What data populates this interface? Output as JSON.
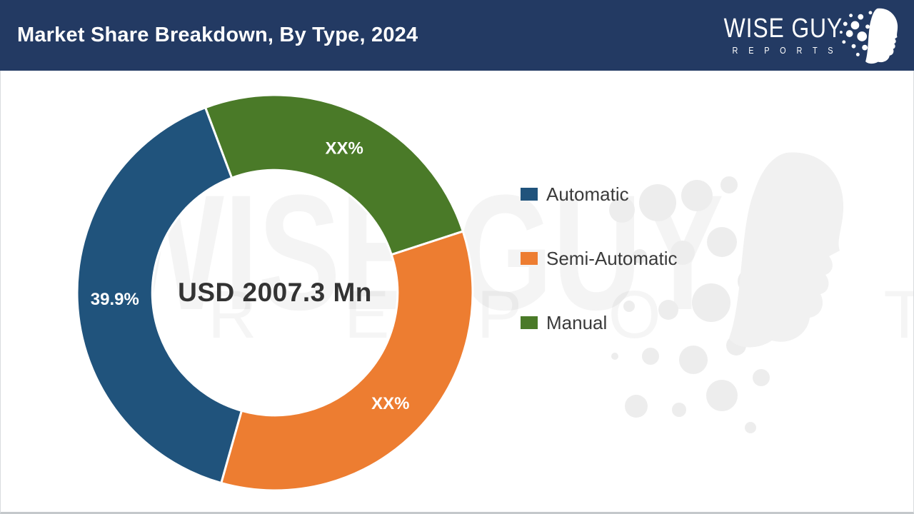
{
  "header": {
    "title": "Market Share Breakdown, By Type, 2024",
    "bg_color": "#233a63",
    "logo": {
      "line1": "WISE GUY",
      "line2": "R E P O R T S"
    }
  },
  "watermark": {
    "line1": "WISE GUY",
    "line2": "R E P O R T S"
  },
  "chart_data": {
    "type": "pie",
    "subtype": "donut",
    "title": "Market Share Breakdown, By Type, 2024",
    "center_label": "USD 2007.3 Mn",
    "legend_position": "right",
    "direction": "counterclockwise",
    "start_angle_deg_from_north": -20.6,
    "inner_radius_ratio": 0.62,
    "slices": [
      {
        "name": "Automatic",
        "value": 39.9,
        "display_label": "39.9%",
        "color": "#20537c"
      },
      {
        "name": "Semi-Automatic",
        "value": 34.4,
        "display_label": "XX%",
        "color": "#ed7d31"
      },
      {
        "name": "Manual",
        "value": 25.7,
        "display_label": "XX%",
        "color": "#4a7a28"
      }
    ]
  }
}
